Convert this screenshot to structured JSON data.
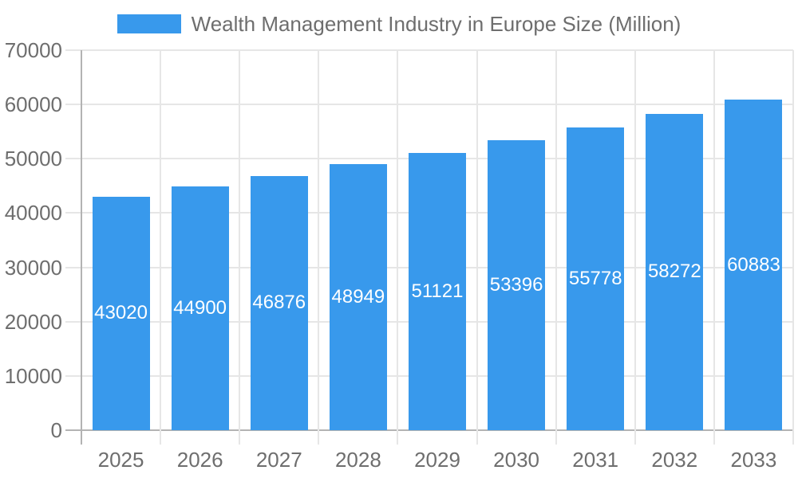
{
  "chart_data": {
    "type": "bar",
    "title": "Wealth Management Industry in Europe Size (Million)",
    "series_name": "Wealth Management Industry in Europe Size (Million)",
    "categories": [
      "2025",
      "2026",
      "2027",
      "2028",
      "2029",
      "2030",
      "2031",
      "2032",
      "2033"
    ],
    "values": [
      43020,
      44900,
      46876,
      48949,
      51121,
      53396,
      55778,
      58272,
      60883
    ],
    "value_labels": [
      "43020",
      "44900",
      "46876",
      "48949",
      "51121",
      "53396",
      "55778",
      "58272",
      "60883"
    ],
    "xlabel": "",
    "ylabel": "",
    "ylim": [
      0,
      70000
    ],
    "y_ticks": [
      0,
      10000,
      20000,
      30000,
      40000,
      50000,
      60000,
      70000
    ],
    "y_tick_labels": [
      "0",
      "10000",
      "20000",
      "30000",
      "40000",
      "50000",
      "60000",
      "70000"
    ],
    "grid": true,
    "legend_position": "top",
    "colors": {
      "bar": "#3899ec",
      "bar_label_text": "#ffffff",
      "axis_text": "#6e6e6e",
      "grid_line": "#e6e6e6",
      "axis_line": "#b3b3b3",
      "background": "#ffffff"
    }
  }
}
